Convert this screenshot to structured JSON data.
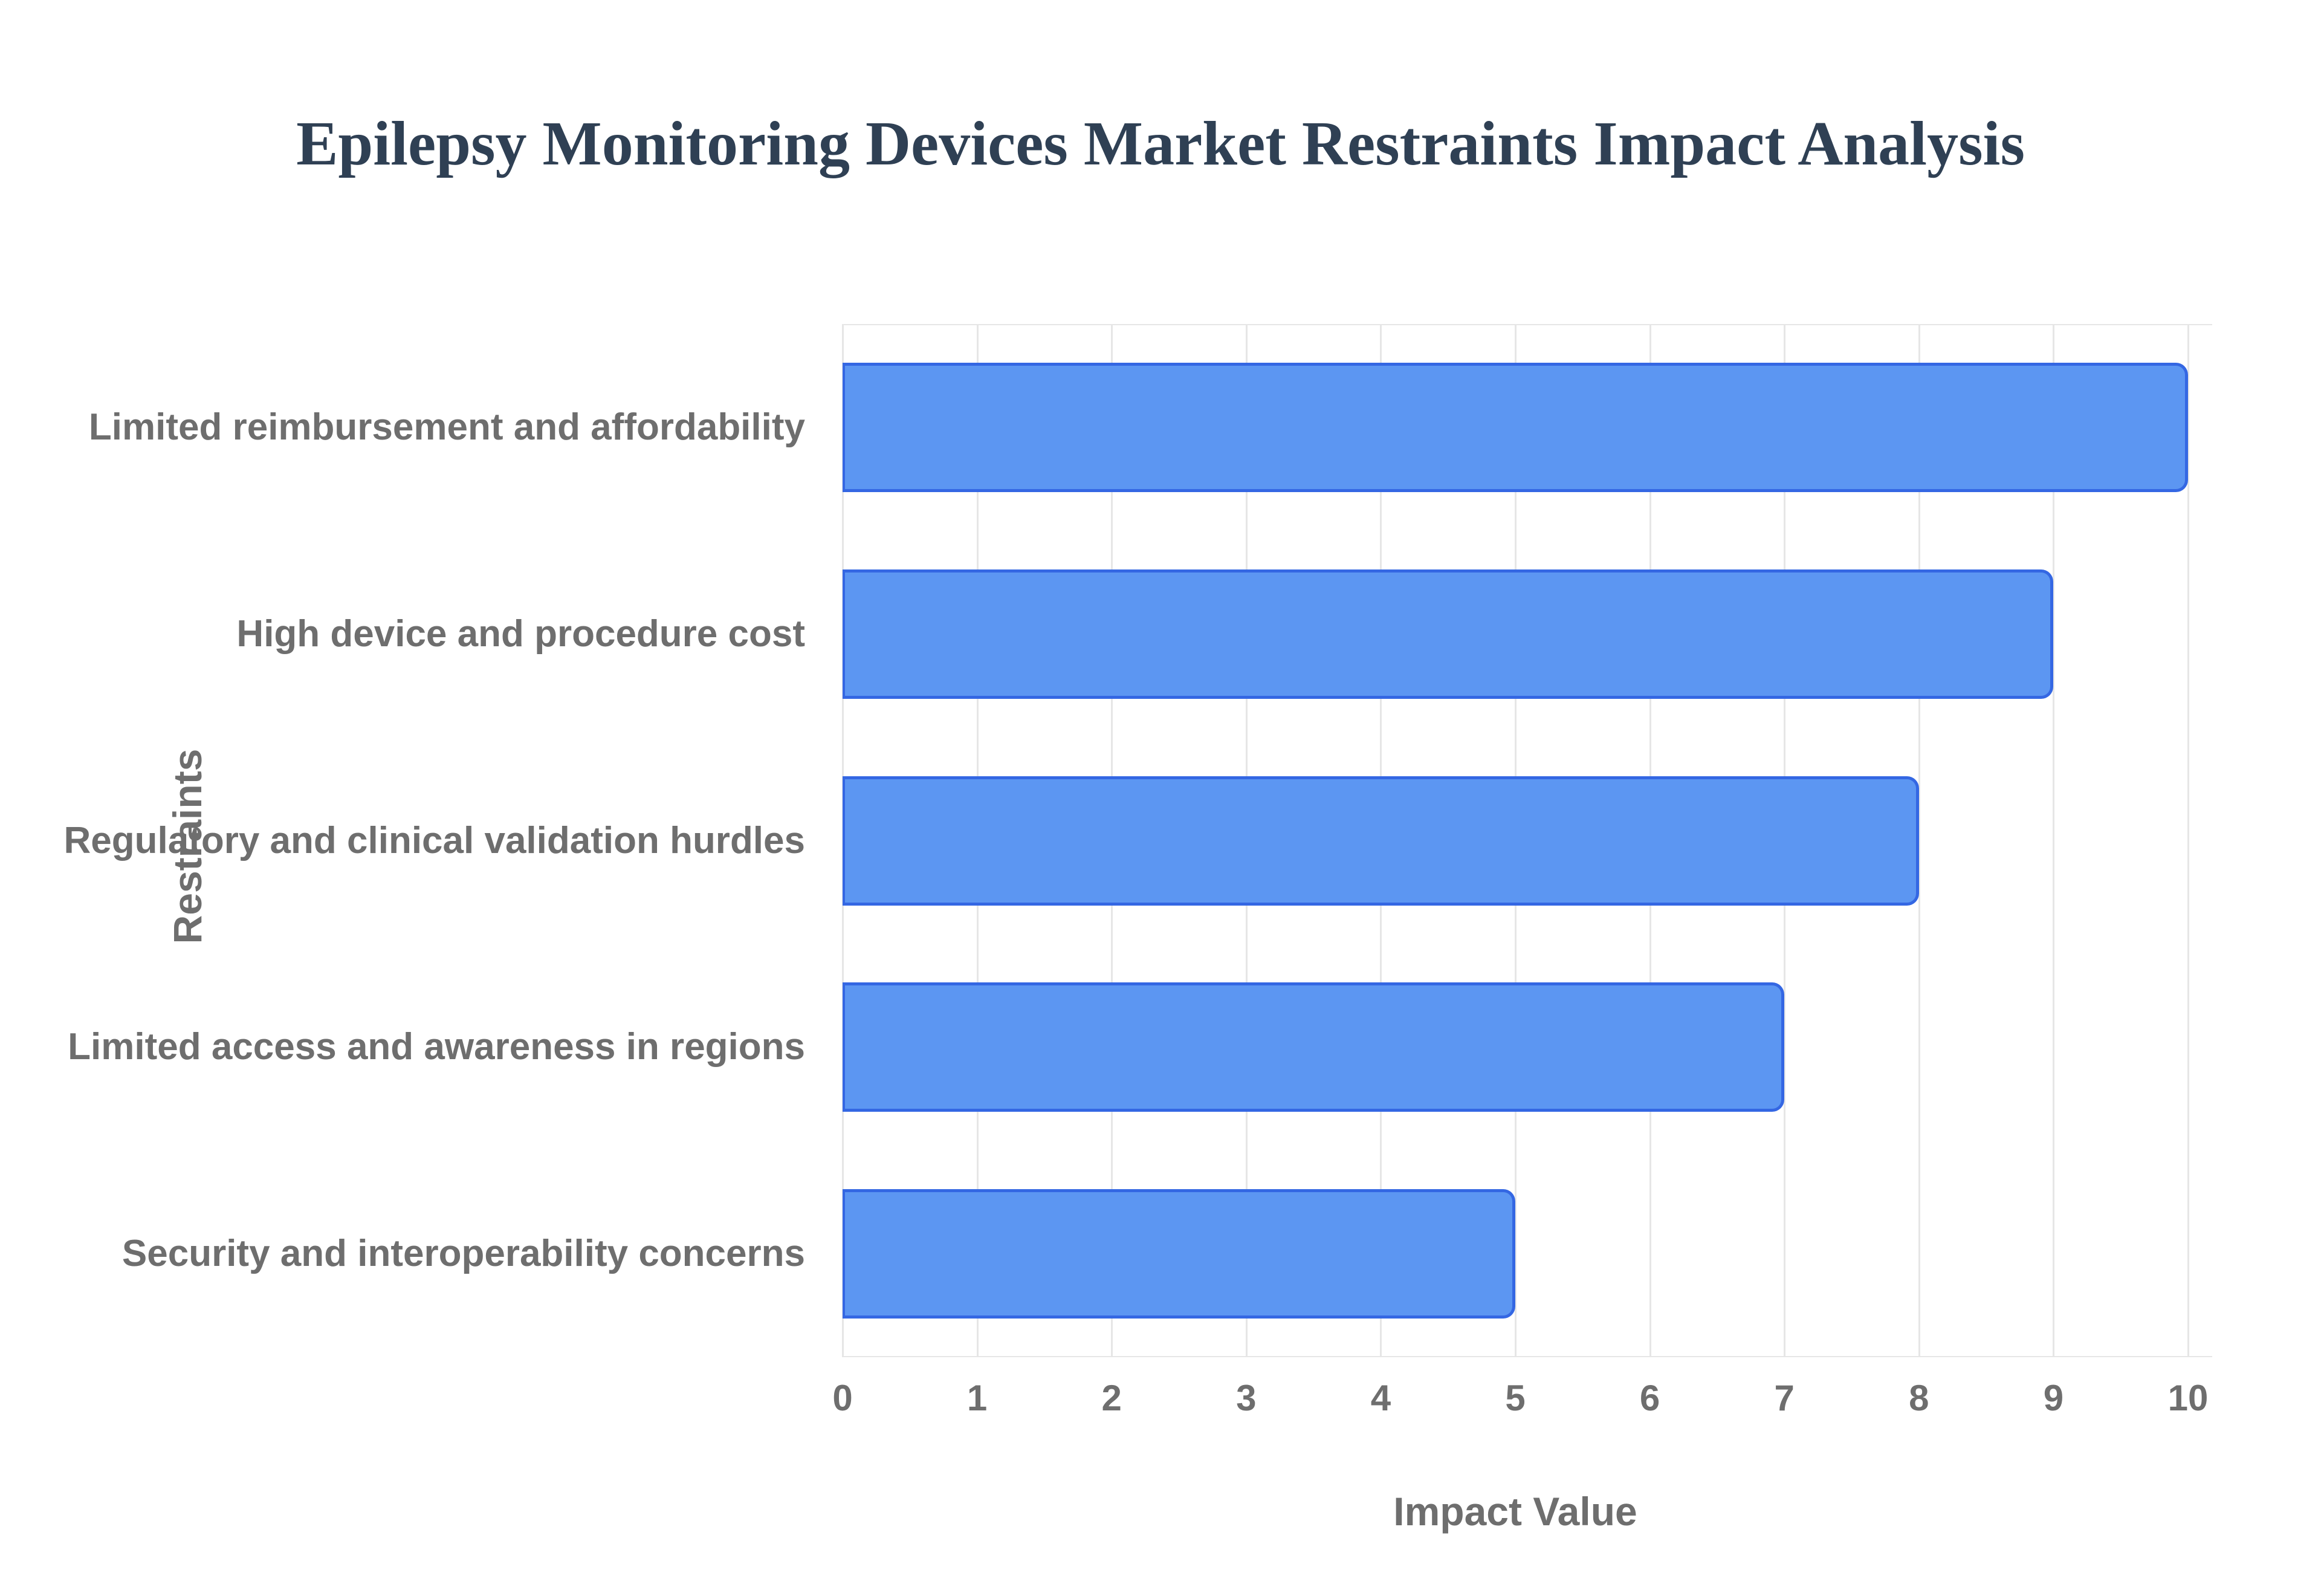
{
  "chart_data": {
    "type": "bar",
    "orientation": "horizontal",
    "title": "Epilepsy Monitoring Devices Market Restraints Impact Analysis",
    "categories": [
      "Limited reimbursement and affordability",
      "High device and procedure cost",
      "Regulatory and clinical validation hurdles",
      "Limited access and awareness in regions",
      "Security and interoperability concerns"
    ],
    "values": [
      10,
      9,
      8,
      7,
      5
    ],
    "xlabel": "Impact Value",
    "ylabel": "Restraints",
    "xlim": [
      0,
      10
    ],
    "xticks": [
      0,
      1,
      2,
      3,
      4,
      5,
      6,
      7,
      8,
      9,
      10
    ],
    "grid": "vertical",
    "legend": "none",
    "colors": {
      "bar_fill": "#5c96f2",
      "bar_border": "#3467e3",
      "title_text": "#2f4054",
      "axis_text": "#6e6e6e",
      "gridline": "#e6e6e6",
      "background": "#ffffff"
    }
  }
}
